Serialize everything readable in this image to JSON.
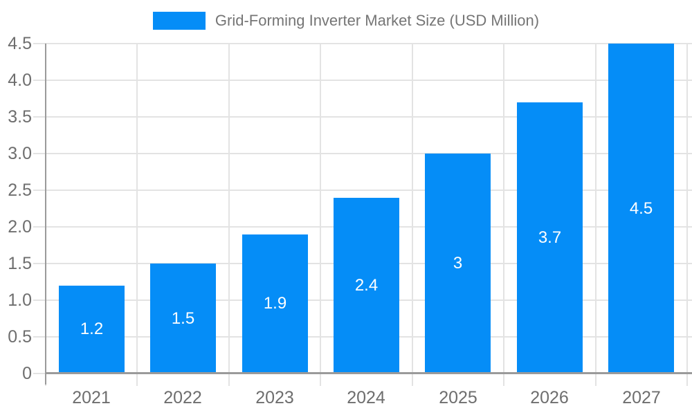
{
  "chart_data": {
    "type": "bar",
    "title": "Grid-Forming Inverter Market Size (USD Million)",
    "legend": {
      "label": "Grid-Forming Inverter Market Size (USD Million)",
      "position": "top-center"
    },
    "categories": [
      "2021",
      "2022",
      "2023",
      "2024",
      "2025",
      "2026",
      "2027"
    ],
    "values": [
      1.2,
      1.5,
      1.9,
      2.4,
      3,
      3.7,
      4.5
    ],
    "value_labels": [
      "1.2",
      "1.5",
      "1.9",
      "2.4",
      "3",
      "3.7",
      "4.5"
    ],
    "xlabel": "",
    "ylabel": "",
    "ylim": [
      0,
      4.5
    ],
    "y_ticks": [
      0,
      0.5,
      1,
      1.5,
      2,
      2.5,
      3,
      3.5,
      4,
      4.5
    ],
    "y_tick_labels": [
      "0",
      "0.5",
      "1.0",
      "1.5",
      "2.0",
      "2.5",
      "3.0",
      "3.5",
      "4.0",
      "4.5"
    ],
    "grid": true,
    "colors": {
      "bar": "#058DF7",
      "grid_line": "#e3e3e3",
      "axis_line": "#9a9a9a",
      "tick_label": "#6e6e6e",
      "legend_label": "#757575",
      "value_label": "#ffffff",
      "background": "#ffffff"
    }
  }
}
